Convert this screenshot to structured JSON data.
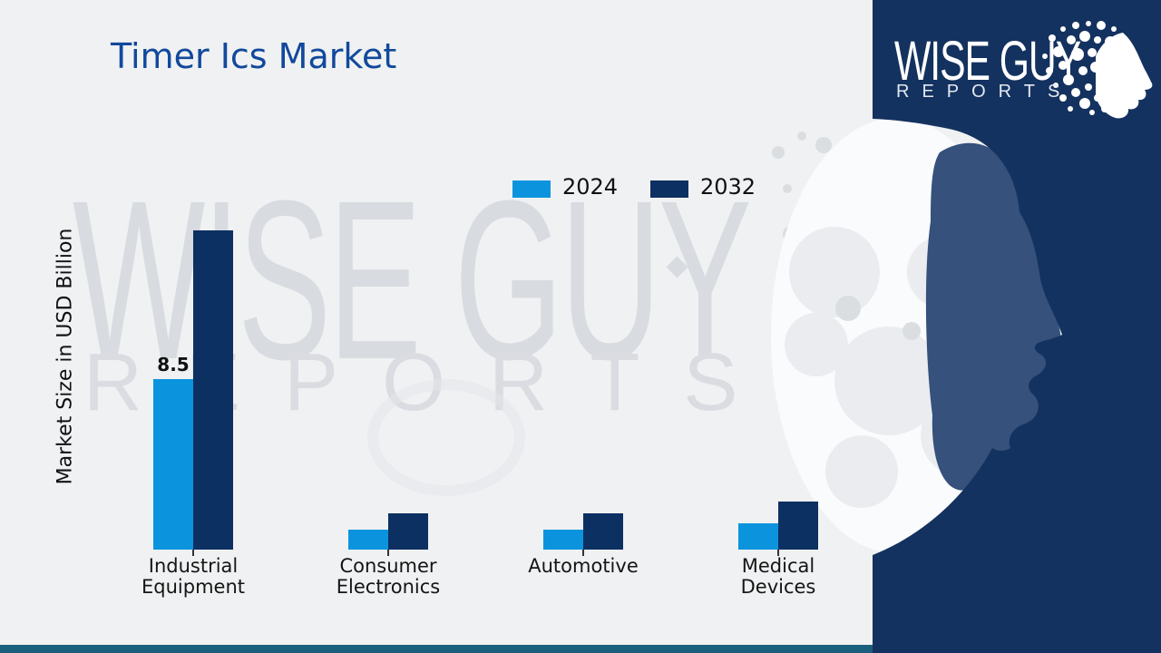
{
  "title": "Timer Ics Market",
  "watermark": {
    "line1": "WISE GUY",
    "line2": "REPORTS"
  },
  "logo": {
    "line1": "WISE GUY",
    "line2": "REPORTS"
  },
  "chart_data": {
    "type": "bar",
    "title": "Timer Ics Market",
    "xlabel": "",
    "ylabel": "Market Size in USD Billion",
    "categories": [
      "Industrial Equipment",
      "Consumer Electronics",
      "Automotive",
      "Medical Devices"
    ],
    "series": [
      {
        "name": "2024",
        "color": "#0b94dd",
        "values": [
          8.5,
          1.0,
          1.0,
          1.3
        ]
      },
      {
        "name": "2032",
        "color": "#0d3063",
        "values": [
          15.9,
          1.8,
          1.8,
          2.4
        ]
      }
    ],
    "bar_labels": {
      "2024": [
        "8.5",
        "",
        "",
        ""
      ],
      "2032": [
        "",
        "",
        "",
        ""
      ]
    },
    "legend_position": "top-center",
    "grid": false,
    "axes_visible": false
  },
  "categories_display": [
    [
      "Industrial",
      "Equipment"
    ],
    [
      "Consumer",
      "Electronics"
    ],
    [
      "Automotive"
    ],
    [
      "Medical",
      "Devices"
    ]
  ],
  "legend": [
    {
      "label": "2024",
      "color": "#0b94dd"
    },
    {
      "label": "2032",
      "color": "#0d3063"
    }
  ],
  "colors": {
    "background": "#f0f1f2",
    "title": "#11499c",
    "bar-2024": "#0b94dd",
    "bar-2032": "#0d3063",
    "panel": "#14325f",
    "face-shadow": "#35517c",
    "circle": "#fafbfc",
    "strip": "#1b5f7e",
    "watermark": "#d8dbe0"
  }
}
